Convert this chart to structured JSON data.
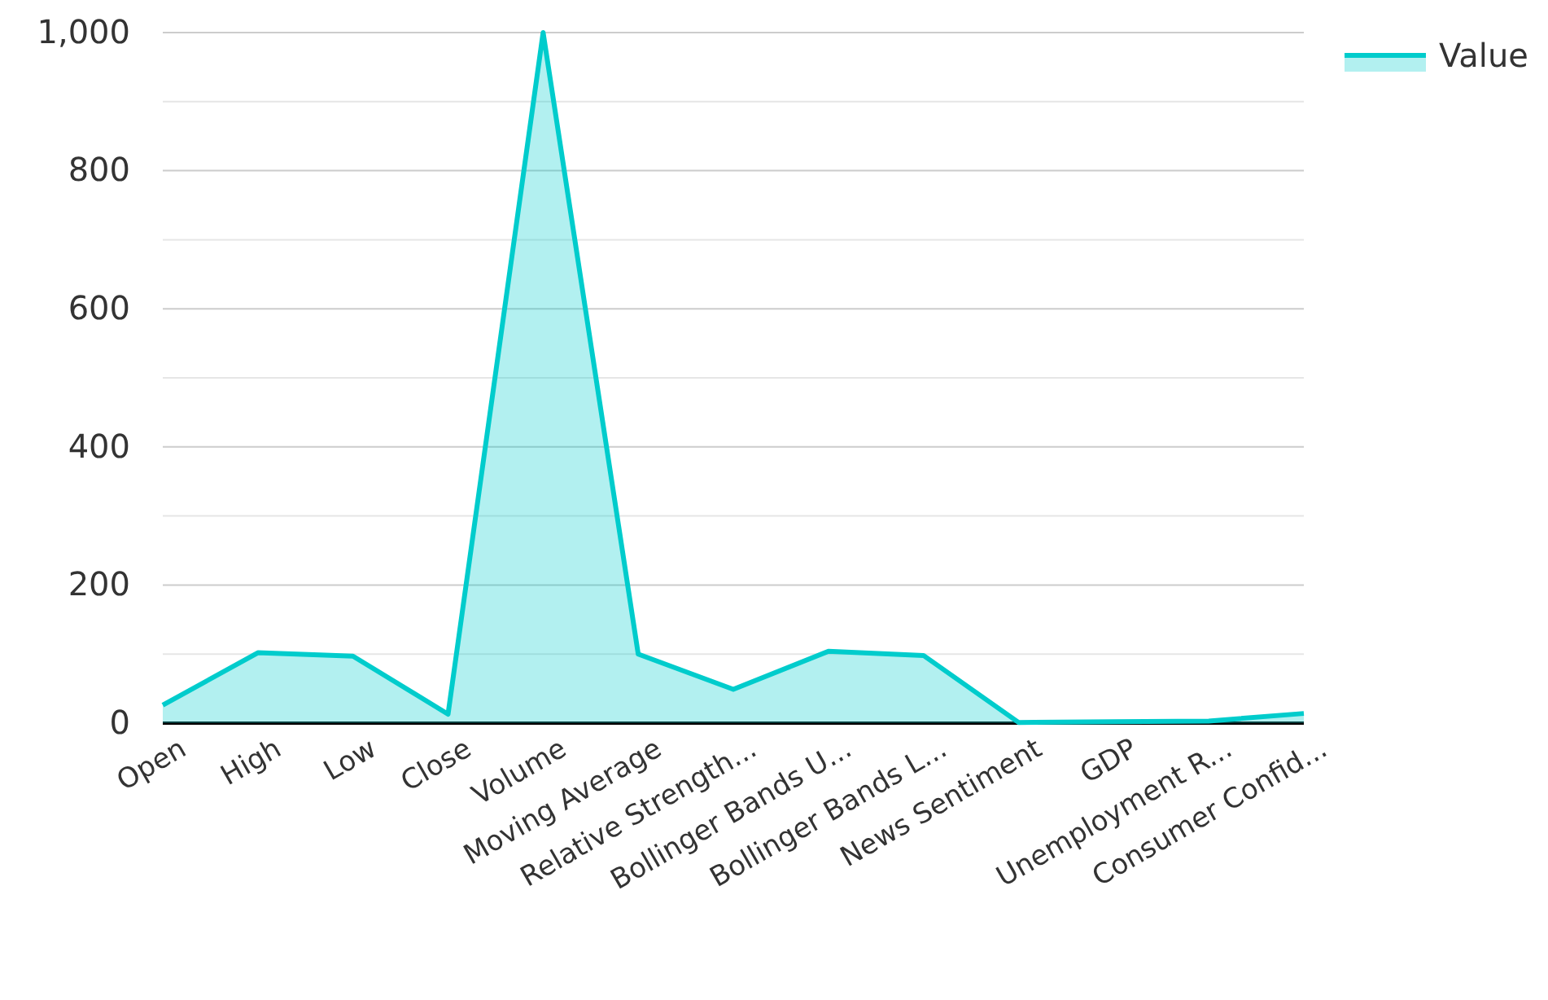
{
  "chart_data": {
    "type": "area",
    "categories": [
      "Open",
      "High",
      "Low",
      "Close",
      "Volume",
      "Moving Average",
      "Relative Strength...",
      "Bollinger Bands U...",
      "Bollinger Bands L...",
      "News Sentiment",
      "GDP",
      "Unemployment R...",
      "Consumer Confid..."
    ],
    "series": [
      {
        "name": "Value",
        "color": "#00cccc",
        "values": [
          26,
          102,
          97,
          13,
          1000,
          100,
          49,
          104,
          98,
          1,
          2,
          3,
          14
        ]
      }
    ],
    "ylim": [
      0,
      1000
    ],
    "yticks": [
      0,
      {
        "value": 100,
        "label": null
      },
      200,
      {
        "value": 300,
        "label": null
      },
      400,
      {
        "value": 500,
        "label": null
      },
      600,
      {
        "value": 700,
        "label": null
      },
      800,
      {
        "value": 900,
        "label": null
      },
      {
        "value": 1000,
        "label": "1,000"
      }
    ],
    "grid": "y",
    "legend": "top right",
    "marker": "none",
    "line_style": "solid"
  }
}
